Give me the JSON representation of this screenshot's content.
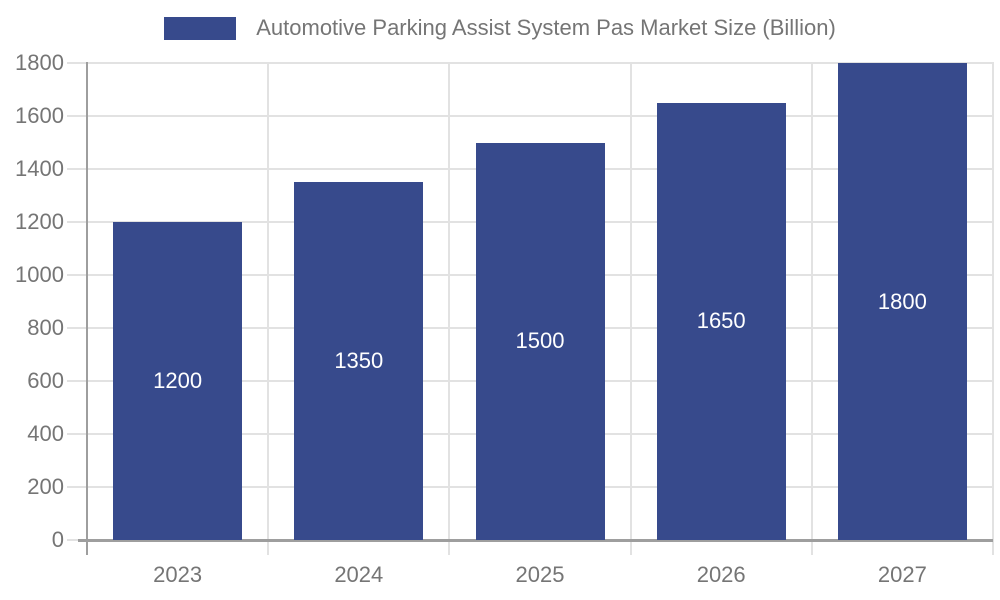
{
  "chart_data": {
    "type": "bar",
    "title": "Automotive Parking Assist System Pas Market Size (Billion)",
    "categories": [
      "2023",
      "2024",
      "2025",
      "2026",
      "2027"
    ],
    "values": [
      1200,
      1350,
      1500,
      1650,
      1800
    ],
    "bar_value_labels": [
      "1200",
      "1350",
      "1500",
      "1650",
      "1800"
    ],
    "xlabel": "",
    "ylabel": "",
    "ylim": [
      0,
      1800
    ],
    "yticks": [
      0,
      200,
      400,
      600,
      800,
      1000,
      1200,
      1400,
      1600,
      1800
    ],
    "grid": true,
    "legend_position": "top",
    "value_labels_position": "inside-center"
  },
  "colors": {
    "bar": "#374A8C",
    "bar_label": "#FFFFFF",
    "axis_text": "#757575",
    "grid": "#E2E2E2",
    "axis_line": "#9E9E9E",
    "background": "#FFFFFF"
  }
}
